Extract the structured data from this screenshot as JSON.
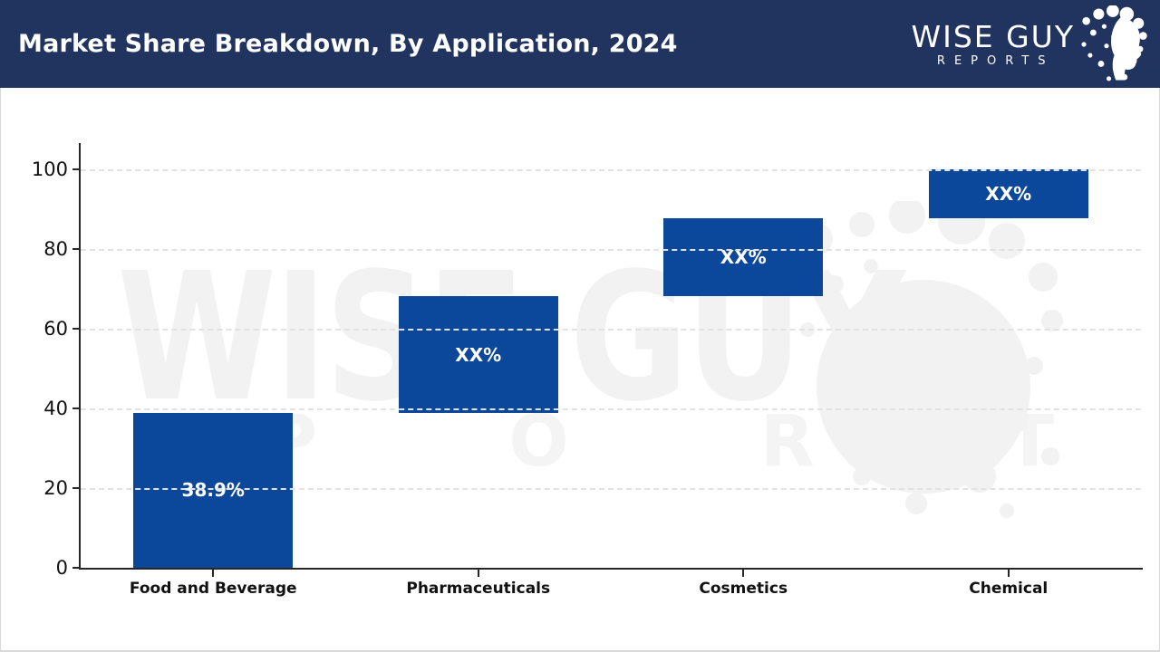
{
  "header": {
    "title": "Market Share Breakdown, By Application, 2024",
    "logo": {
      "line1": "WISE GUY",
      "line2": "REPORTS"
    }
  },
  "watermark": {
    "line1": "WISE GUY",
    "line2": "P O R T S"
  },
  "chart_data": {
    "type": "bar",
    "subtype": "waterfall",
    "title": "Market Share Breakdown, By Application, 2024",
    "categories": [
      "Food and Beverage",
      "Pharmaceuticals",
      "Cosmetics",
      "Chemical"
    ],
    "segments": [
      {
        "category": "Food and Beverage",
        "start": 0,
        "end": 38.9,
        "label": "38.9%"
      },
      {
        "category": "Pharmaceuticals",
        "start": 38.9,
        "end": 68.1,
        "label": "XX%"
      },
      {
        "category": "Cosmetics",
        "start": 68.1,
        "end": 87.7,
        "label": "XX%"
      },
      {
        "category": "Chemical",
        "start": 87.7,
        "end": 100,
        "label": "XX%"
      }
    ],
    "yticks": [
      0,
      20,
      40,
      60,
      80,
      100
    ],
    "ylim": [
      0,
      100
    ],
    "xlabel": "",
    "ylabel": "",
    "legend": "none",
    "grid": "horizontal-dashed-over-bars",
    "bar_color": "#0b479b",
    "bar_label_color": "#ffffff",
    "axis_color": "#262626",
    "grid_color": "#e2e2e2"
  },
  "colors": {
    "header_bg": "#21345f",
    "header_text": "#ffffff",
    "watermark": "#f2f2f2",
    "chart_bg": "#ffffff"
  }
}
